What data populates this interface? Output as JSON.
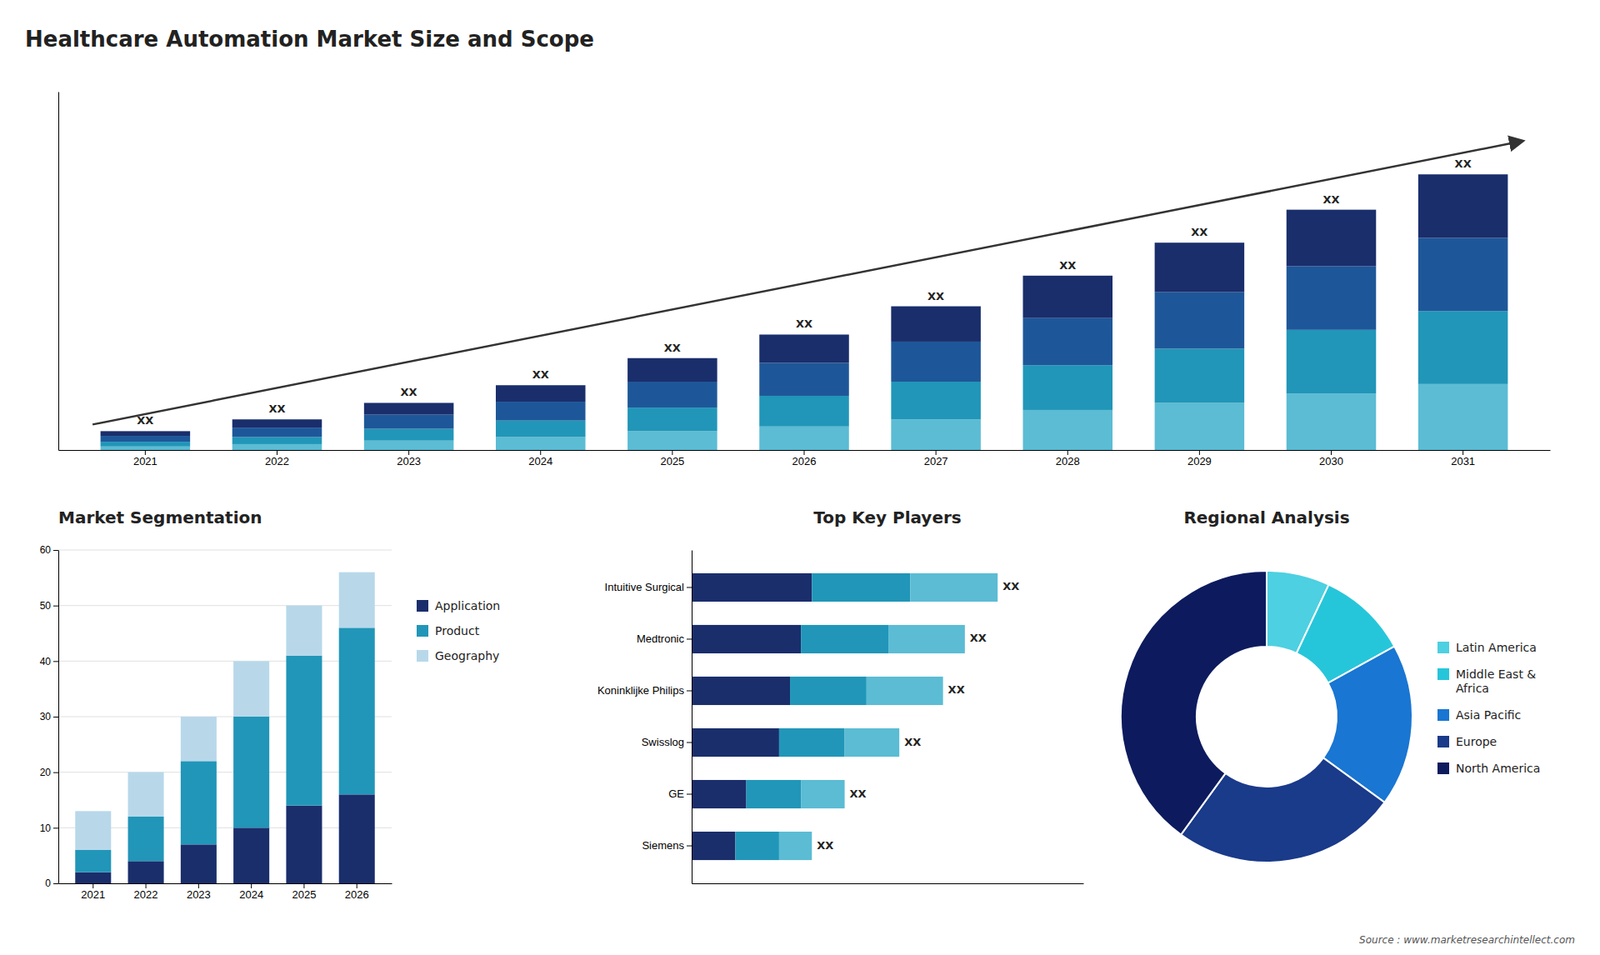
{
  "chart_data": [
    {
      "type": "bar",
      "title": "Healthcare Automation Market Size and Scope",
      "stacked": true,
      "categories": [
        "2021",
        "2022",
        "2023",
        "2024",
        "2025",
        "2026",
        "2027",
        "2028",
        "2029",
        "2030",
        "2031"
      ],
      "series": [
        {
          "color": "#5bbcd4",
          "values": [
            1.5,
            2.5,
            4,
            5.5,
            8,
            10,
            13,
            17,
            20,
            24,
            28
          ]
        },
        {
          "color": "#2196b8",
          "values": [
            2,
            3,
            5,
            7,
            10,
            13,
            16,
            19,
            23,
            27,
            31
          ]
        },
        {
          "color": "#1e5799",
          "values": [
            2.5,
            4,
            6,
            8,
            11,
            14,
            17,
            20,
            24,
            27,
            31
          ]
        },
        {
          "color": "#1a2e6c",
          "values": [
            2,
            3.5,
            5,
            7,
            10,
            12,
            15,
            18,
            21,
            24,
            27
          ]
        }
      ],
      "annotations": [
        "XX",
        "XX",
        "XX",
        "XX",
        "XX",
        "XX",
        "XX",
        "XX",
        "XX",
        "XX",
        "XX"
      ],
      "ylim": [
        0,
        152.1
      ],
      "tick_labels": "x",
      "grid": false
    },
    {
      "type": "bar",
      "title": "Market Segmentation",
      "stacked": true,
      "categories": [
        "2021",
        "2022",
        "2023",
        "2024",
        "2025",
        "2026"
      ],
      "series": [
        {
          "name": "Application",
          "color": "#1a2e6c",
          "values": [
            2,
            4,
            7,
            10,
            14,
            16
          ]
        },
        {
          "name": "Product",
          "color": "#2196b8",
          "values": [
            4,
            8,
            15,
            20,
            27,
            30
          ]
        },
        {
          "name": "Geography",
          "color": "#b8d8ea",
          "values": [
            7,
            8,
            8,
            10,
            9,
            10
          ]
        }
      ],
      "ylim": [
        0,
        60
      ],
      "yticks": [
        0,
        10,
        20,
        30,
        40,
        50,
        60
      ],
      "grid": true,
      "legend": "right"
    },
    {
      "type": "bar",
      "orientation": "horizontal",
      "title": "Top Key Players",
      "stacked": true,
      "categories": [
        "Intuitive Surgical",
        "Medtronic",
        "Koninklijke Philips",
        "Swisslog",
        "GE",
        "Siemens"
      ],
      "series": [
        {
          "color": "#1a2e6c",
          "values": [
            11,
            10,
            9,
            8,
            5,
            4
          ]
        },
        {
          "color": "#2196b8",
          "values": [
            9,
            8,
            7,
            6,
            5,
            4
          ]
        },
        {
          "color": "#5bbcd4",
          "values": [
            8,
            7,
            7,
            5,
            4,
            3
          ]
        }
      ],
      "annotations": [
        "XX",
        "XX",
        "XX",
        "XX",
        "XX",
        "XX"
      ],
      "xlim": [
        0,
        35.84
      ],
      "tick_labels": "y",
      "grid": false
    },
    {
      "type": "donut",
      "title": "Regional Analysis",
      "categories": [
        "Latin America",
        "Middle East &\nAfrica",
        "Asia Pacific",
        "Europe",
        "North America"
      ],
      "values": [
        7,
        10,
        18,
        25,
        40
      ],
      "colors": [
        "#4dd0e1",
        "#26c6da",
        "#1976d2",
        "#1a3a8a",
        "#0d1b5e"
      ],
      "legend": "right",
      "annotations": [
        "Source : www.marketresearchintellect.com"
      ]
    }
  ]
}
